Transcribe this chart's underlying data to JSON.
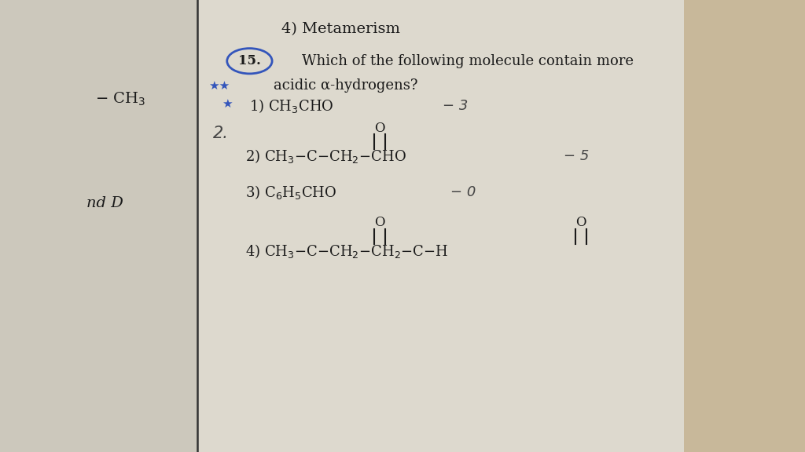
{
  "background_color": "#c8b89a",
  "page_color": "#ddd9ce",
  "left_page_color": "#ccc8bc",
  "title_line": "4) Metamerism",
  "question_number": "15.",
  "question_text": "Which of the following molecule contain more",
  "question_text2": "acidic α-hydrogens?",
  "font_color": "#1a1a1a",
  "circle_color": "#3355bb",
  "stars_color": "#3355bb",
  "handwritten_color": "#444444",
  "left_text1": "− CH₃",
  "left_text2": "nd D",
  "margin_line_x": 0.245,
  "xlim": [
    0,
    10
  ],
  "ylim": [
    0,
    10
  ]
}
